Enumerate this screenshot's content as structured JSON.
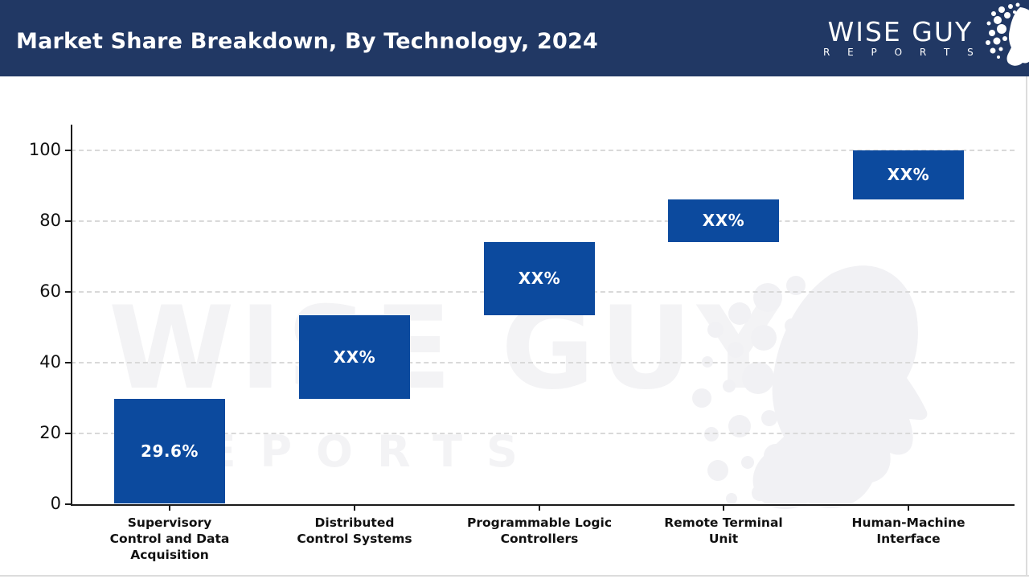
{
  "header": {
    "title": "Market Share Breakdown, By Technology, 2024",
    "bg_color": "#213864"
  },
  "logo": {
    "line1": "WISE GUY",
    "line2": "REPORTS"
  },
  "watermark": {
    "line1": "WISE GUY",
    "line2": "REPORTS"
  },
  "chart_data": {
    "type": "bar",
    "variant": "waterfall",
    "title": "Market Share Breakdown, By Technology, 2024",
    "categories": [
      [
        "Supervisory",
        "Control and Data",
        "Acquisition"
      ],
      [
        "Distributed",
        "Control Systems"
      ],
      [
        "Programmable Logic",
        "Controllers"
      ],
      [
        "Remote Terminal",
        "Unit"
      ],
      [
        "Human-Machine",
        "Interface"
      ]
    ],
    "segments": [
      {
        "start": 0,
        "end": 29.6,
        "label": "29.6%"
      },
      {
        "start": 29.6,
        "end": 53.2,
        "label": "XX%"
      },
      {
        "start": 53.4,
        "end": 74,
        "label": "XX%"
      },
      {
        "start": 74,
        "end": 86,
        "label": "XX%"
      },
      {
        "start": 86,
        "end": 100,
        "label": "XX%"
      }
    ],
    "ylim": [
      0,
      100
    ],
    "yticks": [
      0,
      20,
      40,
      60,
      80,
      100
    ],
    "xlabel": "",
    "ylabel": "",
    "grid": "horizontal-dashed",
    "legend": "none",
    "bar_color": "#0c4a9e",
    "value_label_color": "#ffffff"
  }
}
